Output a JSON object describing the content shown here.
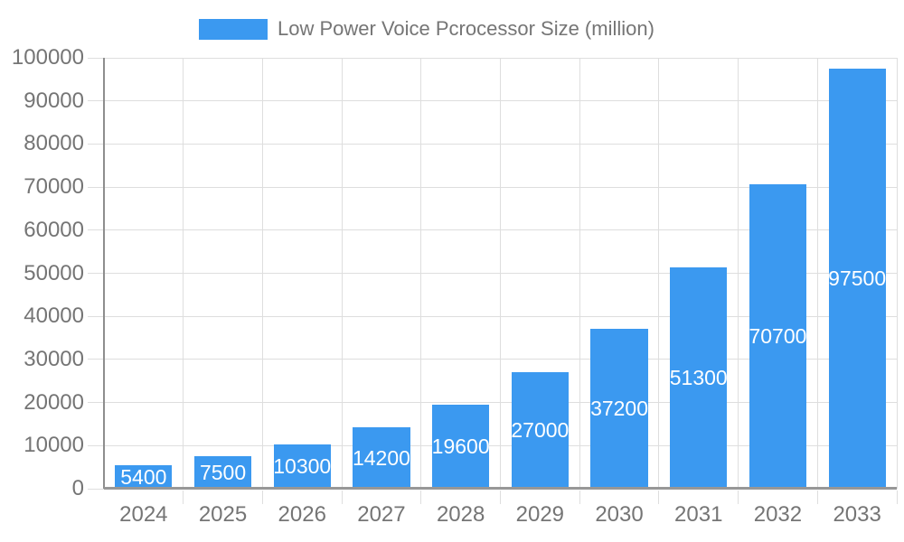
{
  "legend": {
    "label": "Low Power Voice Pcrocessor Size (million)",
    "swatch_color": "#3b99f0"
  },
  "chart_data": {
    "type": "bar",
    "title": "Low Power Voice Pcrocessor Size (million)",
    "categories": [
      "2024",
      "2025",
      "2026",
      "2027",
      "2028",
      "2029",
      "2030",
      "2031",
      "2032",
      "2033"
    ],
    "values": [
      5400,
      7500,
      10300,
      14200,
      19600,
      27000,
      37200,
      51300,
      70700,
      97500
    ],
    "value_labels": [
      "5400",
      "7500",
      "10300",
      "14200",
      "19600",
      "27000",
      "37200",
      "51300",
      "70700",
      "97500"
    ],
    "legend_entries": [
      "Low Power Voice Pcrocessor Size (million)"
    ],
    "legend_position": "top-center",
    "xlabel": "",
    "ylabel": "",
    "ylim": [
      0,
      100000
    ],
    "ytick_step": 10000,
    "ytick_labels": [
      "0",
      "10000",
      "20000",
      "30000",
      "40000",
      "50000",
      "60000",
      "70000",
      "80000",
      "90000",
      "100000"
    ],
    "grid": true,
    "bar_color": "#3b99f0",
    "value_label_color": "#ffffff",
    "axis_label_color": "#757575",
    "grid_color": "#dedede",
    "axis_line_color": "#8e8e8e",
    "background_color": "#ffffff"
  }
}
